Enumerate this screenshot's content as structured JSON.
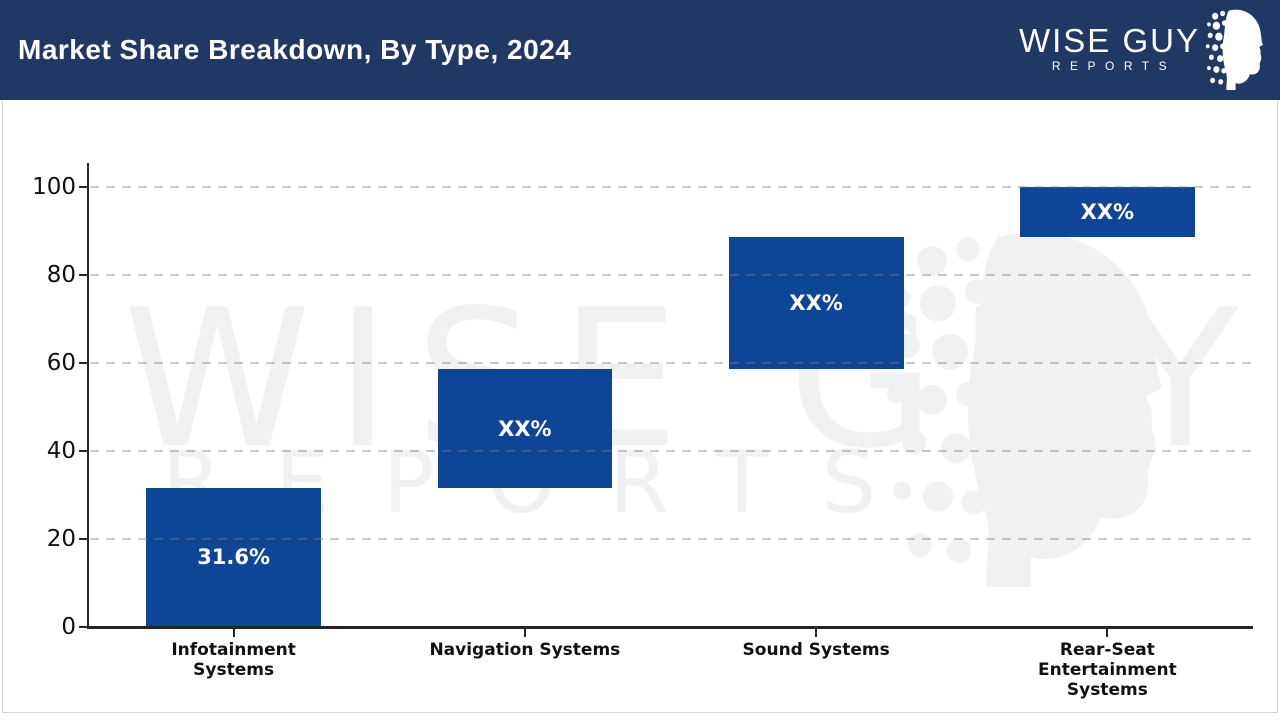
{
  "header": {
    "title": "Market Share Breakdown, By Type, 2024",
    "brand_line1": "WISE GUY",
    "brand_line2": "REPORTS"
  },
  "watermark": {
    "line1": "WISE GUY",
    "line2": "REPORTS"
  },
  "colors": {
    "header_bg": "#203864",
    "bar": "#0d4696",
    "watermark": "#eff1f3",
    "axis": "#262626",
    "gridline": "rgba(128,128,128,0.42)",
    "bar_label_text": "#ffffff",
    "tick_label_text": "#111111"
  },
  "chart_data": {
    "type": "bar",
    "subtype": "waterfall",
    "title": "Market Share Breakdown, By Type, 2024",
    "categories": [
      "Infotainment Systems",
      "Navigation Systems",
      "Sound Systems",
      "Rear-Seat Entertainment Systems"
    ],
    "category_lines": [
      [
        "Infotainment",
        "Systems"
      ],
      [
        "Navigation Systems"
      ],
      [
        "Sound Systems"
      ],
      [
        "Rear-Seat",
        "Entertainment",
        "Systems"
      ]
    ],
    "segments": [
      [
        0,
        31.6
      ],
      [
        31.6,
        58.6
      ],
      [
        58.6,
        88.6
      ],
      [
        88.6,
        100
      ]
    ],
    "bar_labels": [
      "31.6%",
      "XX%",
      "XX%",
      "XX%"
    ],
    "ylim": [
      0,
      100
    ],
    "yticks": [
      0,
      20,
      40,
      60,
      80,
      100
    ],
    "grid": "horizontal-dashed",
    "grid_above_bars": true,
    "legend": "none",
    "bar_color": "#0d4696"
  }
}
